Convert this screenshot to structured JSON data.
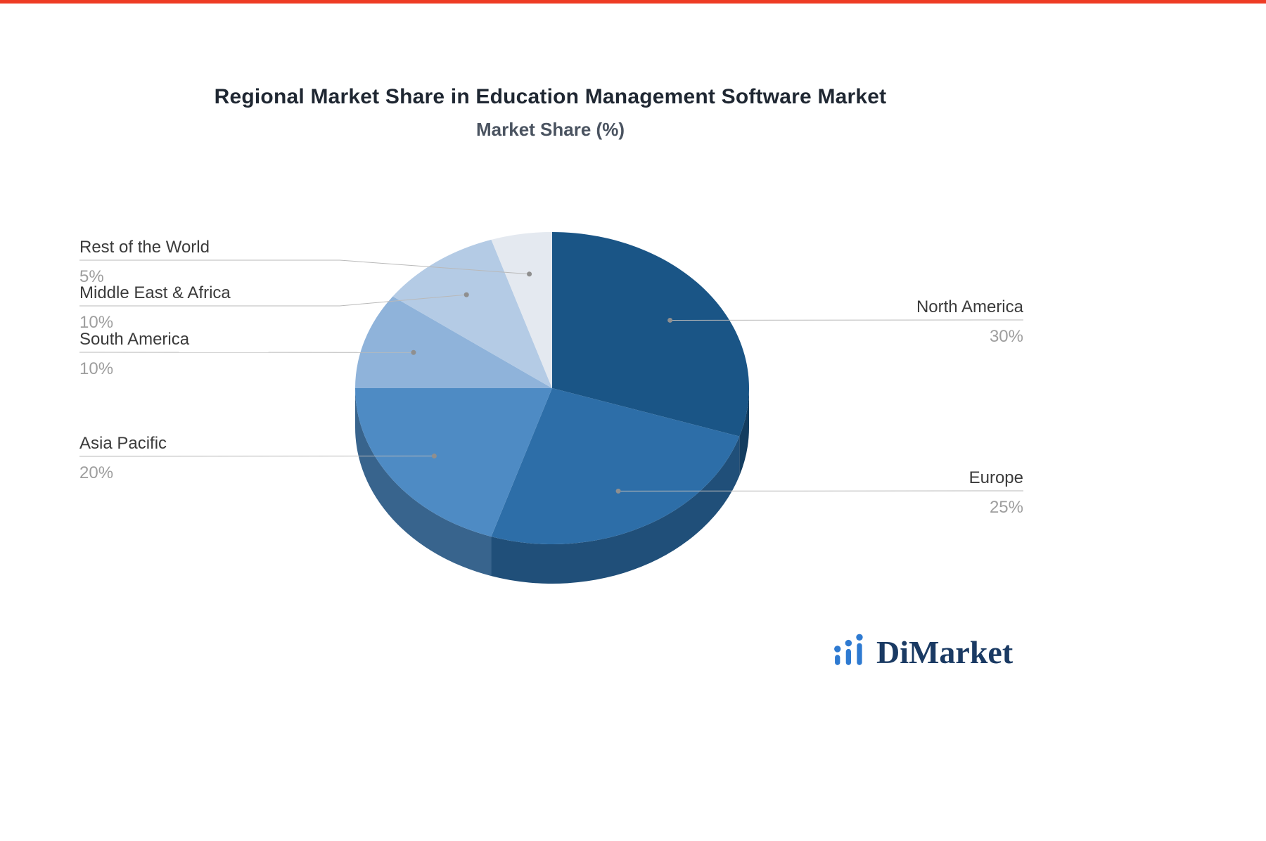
{
  "chart_data": {
    "type": "pie",
    "title": "Regional Market Share in Education Management Software Market",
    "subtitle": "Market Share (%)",
    "unit": "%",
    "style": "3d",
    "legend_position": "callouts",
    "direction": "clockwise",
    "start_angle_deg": 0,
    "labels": [
      "North America",
      "Europe",
      "Asia Pacific",
      "South America",
      "Middle East & Africa",
      "Rest of the World"
    ],
    "values": [
      30,
      25,
      20,
      10,
      10,
      5
    ],
    "value_labels": [
      "30%",
      "25%",
      "20%",
      "10%",
      "10%",
      "5%"
    ],
    "colors": [
      "#1a5586",
      "#2d6ea8",
      "#4e8bc4",
      "#8fb3da",
      "#b4cbe5",
      "#e4e9f0"
    ]
  },
  "branding": {
    "logo_text": "DiMarket",
    "logo_icon": "bar-chart-icon",
    "logo_text_color": "#1a3a63",
    "logo_icon_color": "#2e7ad1"
  },
  "page": {
    "background": "#ffffff",
    "top_accent_color": "#ee3b24",
    "callout_line_color": "#b9b9b9",
    "callout_dot_color": "#8f8f8f"
  }
}
